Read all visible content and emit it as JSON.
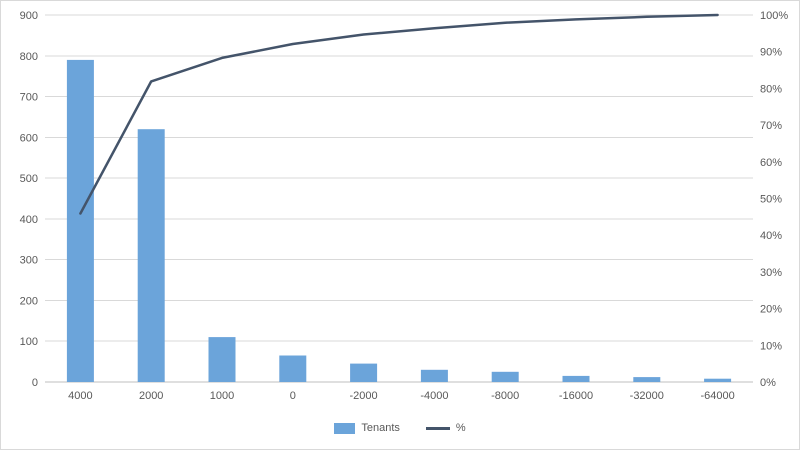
{
  "chart_data": {
    "type": "bar",
    "subtype": "pareto",
    "title": "",
    "xlabel": "",
    "ylabel": "",
    "categories": [
      "4000",
      "2000",
      "1000",
      "0",
      "-2000",
      "-4000",
      "-8000",
      "-16000",
      "-32000",
      "-64000"
    ],
    "series": [
      {
        "name": "Tenants",
        "type": "bar",
        "axis": "left",
        "values": [
          790,
          620,
          110,
          65,
          45,
          30,
          25,
          15,
          12,
          8
        ]
      },
      {
        "name": "%",
        "type": "line",
        "axis": "right",
        "values": [
          45.9,
          81.9,
          88.3,
          92.1,
          94.7,
          96.4,
          97.9,
          98.8,
          99.5,
          100
        ]
      }
    ],
    "left_axis": {
      "min": 0,
      "max": 900,
      "step": 100
    },
    "right_axis": {
      "min": 0,
      "max": 100,
      "step": 10,
      "suffix": "%"
    },
    "grid": true,
    "legend_position": "bottom",
    "colors": {
      "bar": "#6ba4da",
      "line": "#44546a",
      "grid": "#d9d9d9",
      "axis": "#bfbfbf",
      "text": "#595959",
      "background": "#ffffff",
      "border": "#d9d9d9"
    }
  }
}
